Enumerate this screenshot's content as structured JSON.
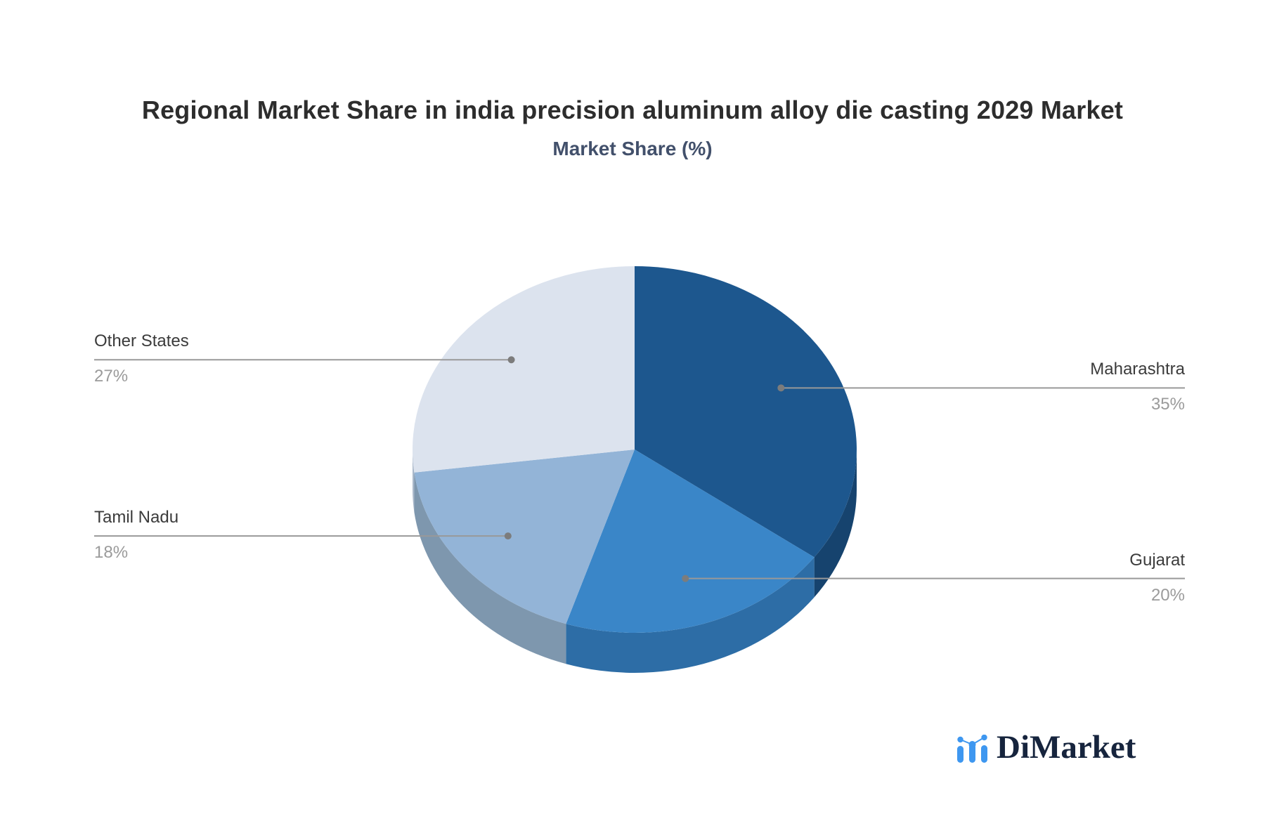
{
  "header": {
    "title": "Regional Market Share in india precision aluminum alloy die casting 2029 Market",
    "subtitle": "Market Share (%)"
  },
  "chart_data": {
    "type": "pie",
    "style": "3d",
    "title": "Regional Market Share in india precision aluminum alloy die casting 2029 Market",
    "subtitle": "Market Share (%)",
    "unit": "%",
    "start_angle_deg": 0,
    "direction": "clockwise",
    "legend_position": "none",
    "slices": [
      {
        "label": "Maharashtra",
        "value": 35,
        "display": "35%",
        "color": "#1d578e",
        "side_color": "#16436e",
        "label_side": "right"
      },
      {
        "label": "Gujarat",
        "value": 20,
        "display": "20%",
        "color": "#3a86c8",
        "side_color": "#2d6da6",
        "label_side": "right"
      },
      {
        "label": "Tamil Nadu",
        "value": 18,
        "display": "18%",
        "color": "#93b4d7",
        "side_color": "#7e97ae",
        "label_side": "left"
      },
      {
        "label": "Other States",
        "value": 27,
        "display": "27%",
        "color": "#dce3ee",
        "side_color": "#aab8ca",
        "label_side": "left"
      }
    ]
  },
  "logo": {
    "text": "DiMarket",
    "icon": "bar-line-chart-icon",
    "text_color": "#16243d",
    "accent_color": "#3e97f0"
  },
  "colors": {
    "background": "#ffffff",
    "leader_line": "#999999",
    "dot": "#7c7c7c",
    "label_text": "#3b3b3b",
    "pct_text": "#9b9b9b"
  }
}
